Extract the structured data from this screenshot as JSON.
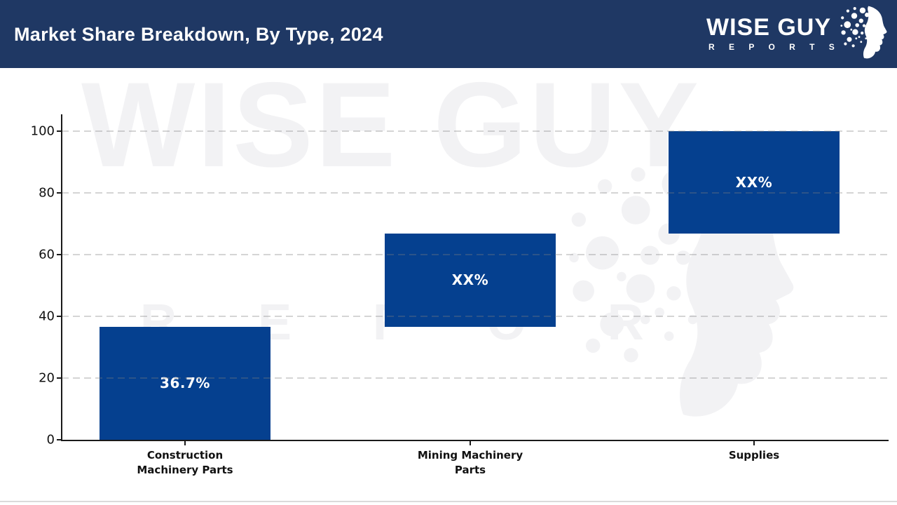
{
  "header": {
    "title": "Market Share Breakdown, By Type, 2024",
    "bg_color": "#1F3864",
    "logo": {
      "line1": "WISE GUY",
      "line2": "R E P O R T S"
    }
  },
  "watermark": {
    "line1": "WISE GUY",
    "line2": "R E P O R T S",
    "color": "#F2F2F4"
  },
  "chart_data": {
    "type": "bar",
    "subtype": "waterfall",
    "title": "Market Share Breakdown, By Type, 2024",
    "categories": [
      "Construction\nMachinery Parts",
      "Mining Machinery\nParts",
      "Supplies"
    ],
    "segments": [
      {
        "category": "Construction Machinery Parts",
        "start": 0,
        "end": 36.7,
        "label": "36.7%"
      },
      {
        "category": "Mining Machinery Parts",
        "start": 36.7,
        "end": 66.8,
        "label": "XX%"
      },
      {
        "category": "Supplies",
        "start": 66.8,
        "end": 100,
        "label": "XX%"
      }
    ],
    "xlabel": "",
    "ylabel": "",
    "ylim": [
      0,
      100
    ],
    "yticks": [
      0,
      20,
      40,
      60,
      80,
      100
    ],
    "grid": "horizontal-dashed",
    "legend": "none",
    "bar_color": "#05408F",
    "bar_label_color": "#FFFFFF",
    "axis_color": "#1a1a1a"
  }
}
